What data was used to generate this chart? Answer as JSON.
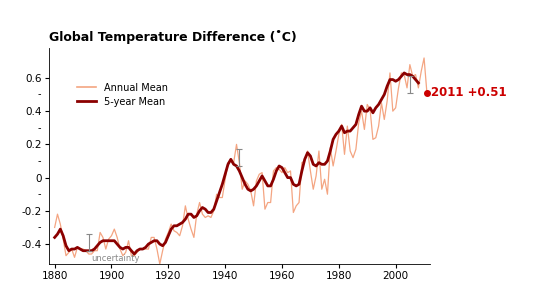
{
  "title": "Global Temperature Difference (˚C)",
  "title_fontsize": 9,
  "background_color": "#ffffff",
  "annual_color": "#f4a582",
  "fiveyear_color": "#8b0000",
  "annotation_text": "2011 +0.51",
  "annotation_color": "#cc0000",
  "uncertainty_label": "uncertainty",
  "uncertainty_color": "#888888",
  "legend_annual": "Annual Mean",
  "legend_5year": "5-year Mean",
  "xlim": [
    1878,
    2012
  ],
  "ylim": [
    -0.52,
    0.78
  ],
  "yticks": [
    -0.4,
    -0.2,
    0.0,
    0.2,
    0.4,
    0.6
  ],
  "xticks": [
    1880,
    1900,
    1920,
    1940,
    1960,
    1980,
    2000
  ],
  "years": [
    1880,
    1881,
    1882,
    1883,
    1884,
    1885,
    1886,
    1887,
    1888,
    1889,
    1890,
    1891,
    1892,
    1893,
    1894,
    1895,
    1896,
    1897,
    1898,
    1899,
    1900,
    1901,
    1902,
    1903,
    1904,
    1905,
    1906,
    1907,
    1908,
    1909,
    1910,
    1911,
    1912,
    1913,
    1914,
    1915,
    1916,
    1917,
    1918,
    1919,
    1920,
    1921,
    1922,
    1923,
    1924,
    1925,
    1926,
    1927,
    1928,
    1929,
    1930,
    1931,
    1932,
    1933,
    1934,
    1935,
    1936,
    1937,
    1938,
    1939,
    1940,
    1941,
    1942,
    1943,
    1944,
    1945,
    1946,
    1947,
    1948,
    1949,
    1950,
    1951,
    1952,
    1953,
    1954,
    1955,
    1956,
    1957,
    1958,
    1959,
    1960,
    1961,
    1962,
    1963,
    1964,
    1965,
    1966,
    1967,
    1968,
    1969,
    1970,
    1971,
    1972,
    1973,
    1974,
    1975,
    1976,
    1977,
    1978,
    1979,
    1980,
    1981,
    1982,
    1983,
    1984,
    1985,
    1986,
    1987,
    1988,
    1989,
    1990,
    1991,
    1992,
    1993,
    1994,
    1995,
    1996,
    1997,
    1998,
    1999,
    2000,
    2001,
    2002,
    2003,
    2004,
    2005,
    2006,
    2007,
    2008,
    2009,
    2010,
    2011
  ],
  "annual": [
    -0.3,
    -0.22,
    -0.28,
    -0.37,
    -0.47,
    -0.45,
    -0.43,
    -0.48,
    -0.42,
    -0.43,
    -0.43,
    -0.44,
    -0.46,
    -0.46,
    -0.44,
    -0.44,
    -0.33,
    -0.36,
    -0.43,
    -0.37,
    -0.35,
    -0.31,
    -0.36,
    -0.43,
    -0.47,
    -0.45,
    -0.38,
    -0.47,
    -0.47,
    -0.45,
    -0.43,
    -0.43,
    -0.43,
    -0.43,
    -0.36,
    -0.36,
    -0.43,
    -0.52,
    -0.44,
    -0.37,
    -0.33,
    -0.28,
    -0.32,
    -0.33,
    -0.35,
    -0.29,
    -0.17,
    -0.25,
    -0.31,
    -0.36,
    -0.22,
    -0.15,
    -0.22,
    -0.24,
    -0.23,
    -0.24,
    -0.2,
    -0.1,
    -0.12,
    -0.12,
    -0.01,
    0.09,
    0.1,
    0.09,
    0.2,
    0.09,
    -0.07,
    -0.02,
    -0.04,
    -0.08,
    -0.17,
    -0.02,
    0.02,
    0.03,
    -0.19,
    -0.15,
    -0.15,
    0.04,
    0.06,
    0.05,
    0.03,
    0.06,
    0.03,
    0.04,
    -0.21,
    -0.17,
    -0.15,
    0.09,
    0.1,
    0.16,
    0.04,
    -0.07,
    0.01,
    0.16,
    -0.07,
    -0.01,
    -0.1,
    0.18,
    0.07,
    0.16,
    0.26,
    0.32,
    0.14,
    0.31,
    0.16,
    0.12,
    0.17,
    0.33,
    0.4,
    0.29,
    0.44,
    0.41,
    0.23,
    0.24,
    0.31,
    0.45,
    0.35,
    0.46,
    0.63,
    0.4,
    0.42,
    0.54,
    0.63,
    0.62,
    0.54,
    0.68,
    0.61,
    0.62,
    0.54,
    0.64,
    0.72,
    0.51
  ],
  "fiveyear": [
    -0.36,
    -0.34,
    -0.31,
    -0.35,
    -0.41,
    -0.44,
    -0.43,
    -0.43,
    -0.42,
    -0.43,
    -0.44,
    -0.44,
    -0.44,
    -0.44,
    -0.43,
    -0.41,
    -0.39,
    -0.38,
    -0.38,
    -0.38,
    -0.38,
    -0.38,
    -0.4,
    -0.42,
    -0.43,
    -0.42,
    -0.42,
    -0.44,
    -0.46,
    -0.44,
    -0.43,
    -0.43,
    -0.42,
    -0.4,
    -0.39,
    -0.38,
    -0.38,
    -0.4,
    -0.41,
    -0.39,
    -0.35,
    -0.31,
    -0.29,
    -0.29,
    -0.28,
    -0.27,
    -0.25,
    -0.22,
    -0.22,
    -0.24,
    -0.23,
    -0.2,
    -0.18,
    -0.19,
    -0.21,
    -0.21,
    -0.19,
    -0.14,
    -0.09,
    -0.04,
    0.02,
    0.08,
    0.11,
    0.08,
    0.07,
    0.04,
    0.0,
    -0.04,
    -0.07,
    -0.08,
    -0.07,
    -0.05,
    -0.02,
    0.01,
    -0.02,
    -0.05,
    -0.05,
    -0.01,
    0.04,
    0.07,
    0.06,
    0.03,
    0.0,
    -0.0,
    -0.04,
    -0.05,
    -0.04,
    0.04,
    0.11,
    0.15,
    0.13,
    0.08,
    0.07,
    0.09,
    0.08,
    0.08,
    0.1,
    0.16,
    0.23,
    0.26,
    0.28,
    0.31,
    0.27,
    0.28,
    0.28,
    0.3,
    0.32,
    0.38,
    0.43,
    0.4,
    0.4,
    0.42,
    0.39,
    0.42,
    0.44,
    0.47,
    0.5,
    0.55,
    0.59,
    0.59,
    0.58,
    0.59,
    0.61,
    0.63,
    0.62,
    0.62,
    0.61,
    0.59,
    0.57,
    null,
    null,
    null
  ],
  "errorbar_years": [
    1892,
    1945,
    2005
  ],
  "errorbar_values": [
    -0.39,
    0.12,
    0.56
  ],
  "errorbar_half": 0.05,
  "annotation_year": 2011,
  "annotation_value": 0.51
}
